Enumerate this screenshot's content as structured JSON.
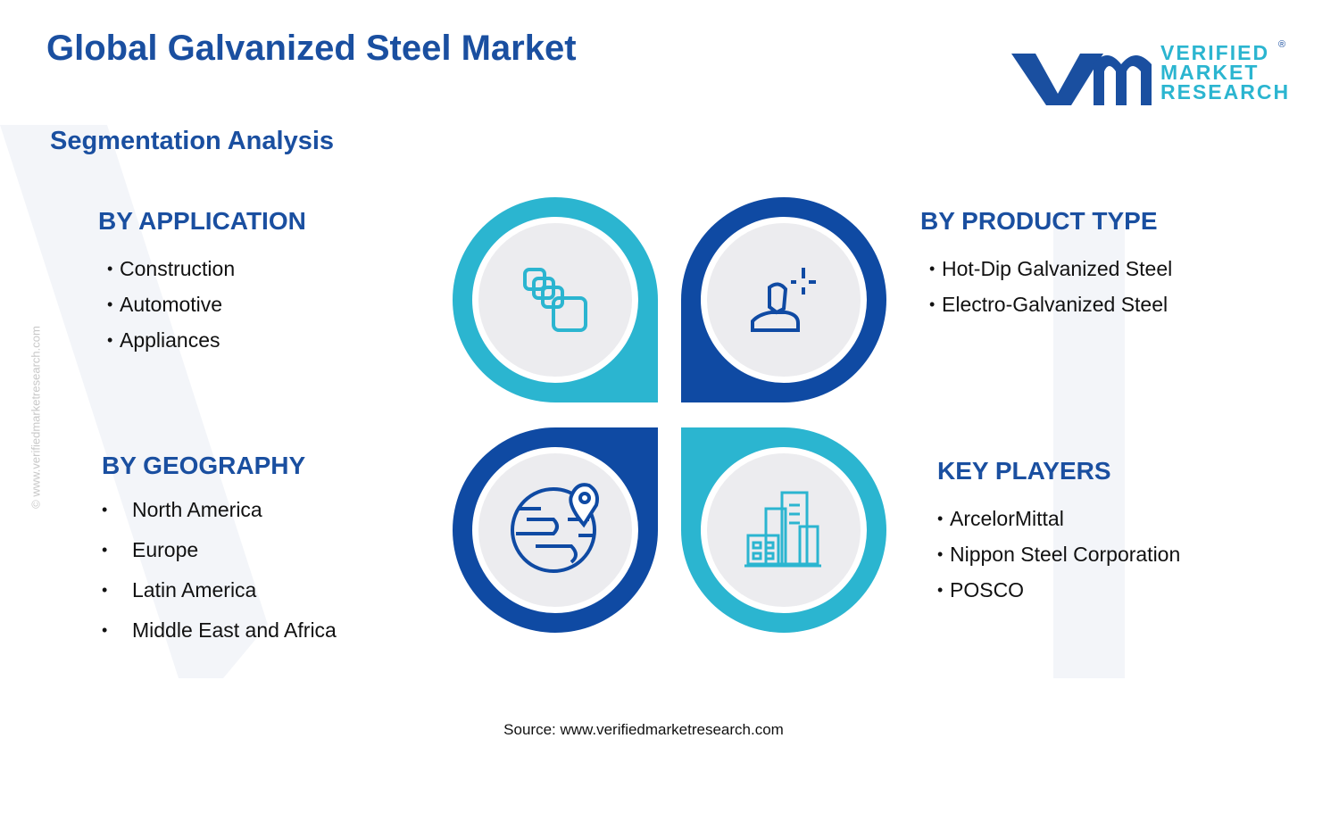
{
  "header": {
    "title": "Global Galvanized Steel Market",
    "subtitle": "Segmentation Analysis"
  },
  "logo": {
    "lines": [
      "VERIFIED",
      "MARKET",
      "RESEARCH"
    ],
    "mark": "®"
  },
  "watermark": "© www.verifiedmarketresearch.com",
  "segments": [
    {
      "title": "BY APPLICATION",
      "items": [
        "Construction",
        "Automotive",
        "Appliances"
      ]
    },
    {
      "title": "BY PRODUCT TYPE",
      "items": [
        "Hot-Dip Galvanized Steel",
        "Electro-Galvanized Steel"
      ]
    },
    {
      "title": "BY GEOGRAPHY",
      "items": [
        "North America",
        "Europe",
        "Latin America",
        "Middle East and Africa"
      ]
    },
    {
      "title": "KEY PLAYERS",
      "items": [
        "ArcelorMittal",
        "Nippon Steel Corporation",
        "POSCO"
      ]
    }
  ],
  "source": "Source: www.verifiedmarketresearch.com"
}
